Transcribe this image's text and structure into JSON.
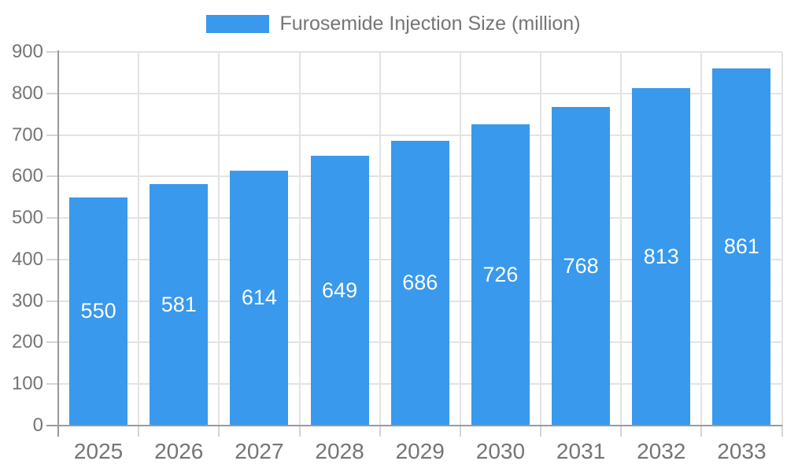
{
  "chart_data": {
    "type": "bar",
    "title": "Furosemide Injection Size (million)",
    "legend": [
      "Furosemide Injection Size (million)"
    ],
    "legend_position": "top-center",
    "categories": [
      "2025",
      "2026",
      "2027",
      "2028",
      "2029",
      "2030",
      "2031",
      "2032",
      "2033"
    ],
    "series": [
      {
        "name": "Furosemide Injection Size (million)",
        "values": [
          550,
          581,
          614,
          649,
          686,
          726,
          768,
          813,
          861
        ]
      }
    ],
    "xlabel": "",
    "ylabel": "",
    "ylim": [
      0,
      900
    ],
    "yticks": [
      0,
      100,
      200,
      300,
      400,
      500,
      600,
      700,
      800,
      900
    ],
    "grid": true,
    "value_label_position": "inside-center",
    "colors": {
      "bar": "#3999EC",
      "value_label": "#FFFFFF",
      "axis_text": "#757575",
      "axis_line": "#9A9A9A",
      "grid_line": "#E3E3E3",
      "tick_line": "#D4D4D4",
      "background": "#FFFFFF"
    }
  }
}
